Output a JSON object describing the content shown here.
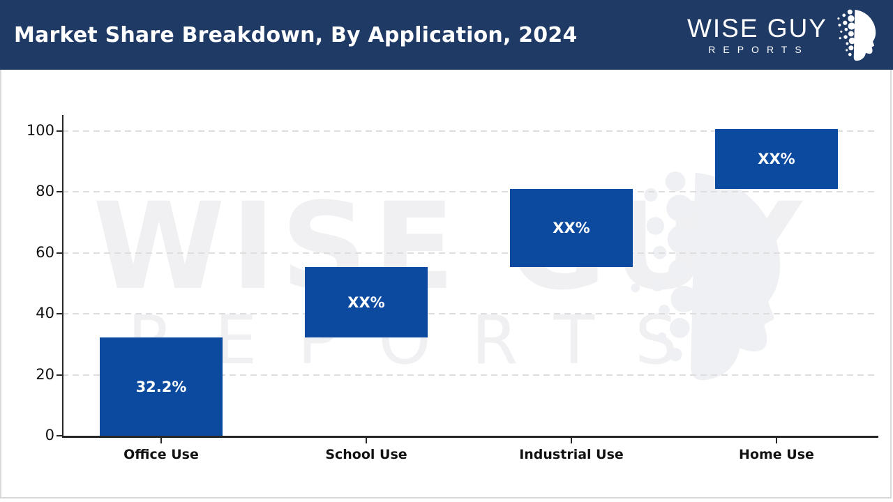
{
  "header": {
    "title": "Market Share Breakdown, By Application, 2024",
    "bg_color": "#203a66",
    "logo": {
      "line1": "WISE GUY",
      "line2": "REPORTS",
      "head_icon": "dotted-head-profile"
    }
  },
  "watermark": {
    "line1": "WISE GUY",
    "line2": "REPORTS",
    "head_icon": "dotted-head-profile"
  },
  "chart_data": {
    "type": "bar",
    "subtype": "floating-waterfall",
    "title": "Market Share Breakdown, By Application, 2024",
    "xlabel": "",
    "ylabel": "",
    "categories": [
      "Office Use",
      "School Use",
      "Industrial Use",
      "Home Use"
    ],
    "series": [
      {
        "name": "Market Share %",
        "segments": [
          {
            "category": "Office Use",
            "start": 0,
            "end": 32.2,
            "label": "32.2%"
          },
          {
            "category": "School Use",
            "start": 32.2,
            "end": 55.3,
            "label": "XX%"
          },
          {
            "category": "Industrial Use",
            "start": 55.3,
            "end": 81,
            "label": "XX%"
          },
          {
            "category": "Home Use",
            "start": 81,
            "end": 100.5,
            "label": "XX%"
          }
        ]
      }
    ],
    "ylim": [
      0,
      100
    ],
    "yticks": [
      0,
      20,
      40,
      60,
      80,
      100
    ],
    "grid": "horizontal-dashed",
    "legend": "none",
    "colors": {
      "bar": "#0b4a9e",
      "bar_label": "#ffffff",
      "axis": "#262626",
      "tick_text": "#111111",
      "gridline": "#dedede"
    }
  }
}
